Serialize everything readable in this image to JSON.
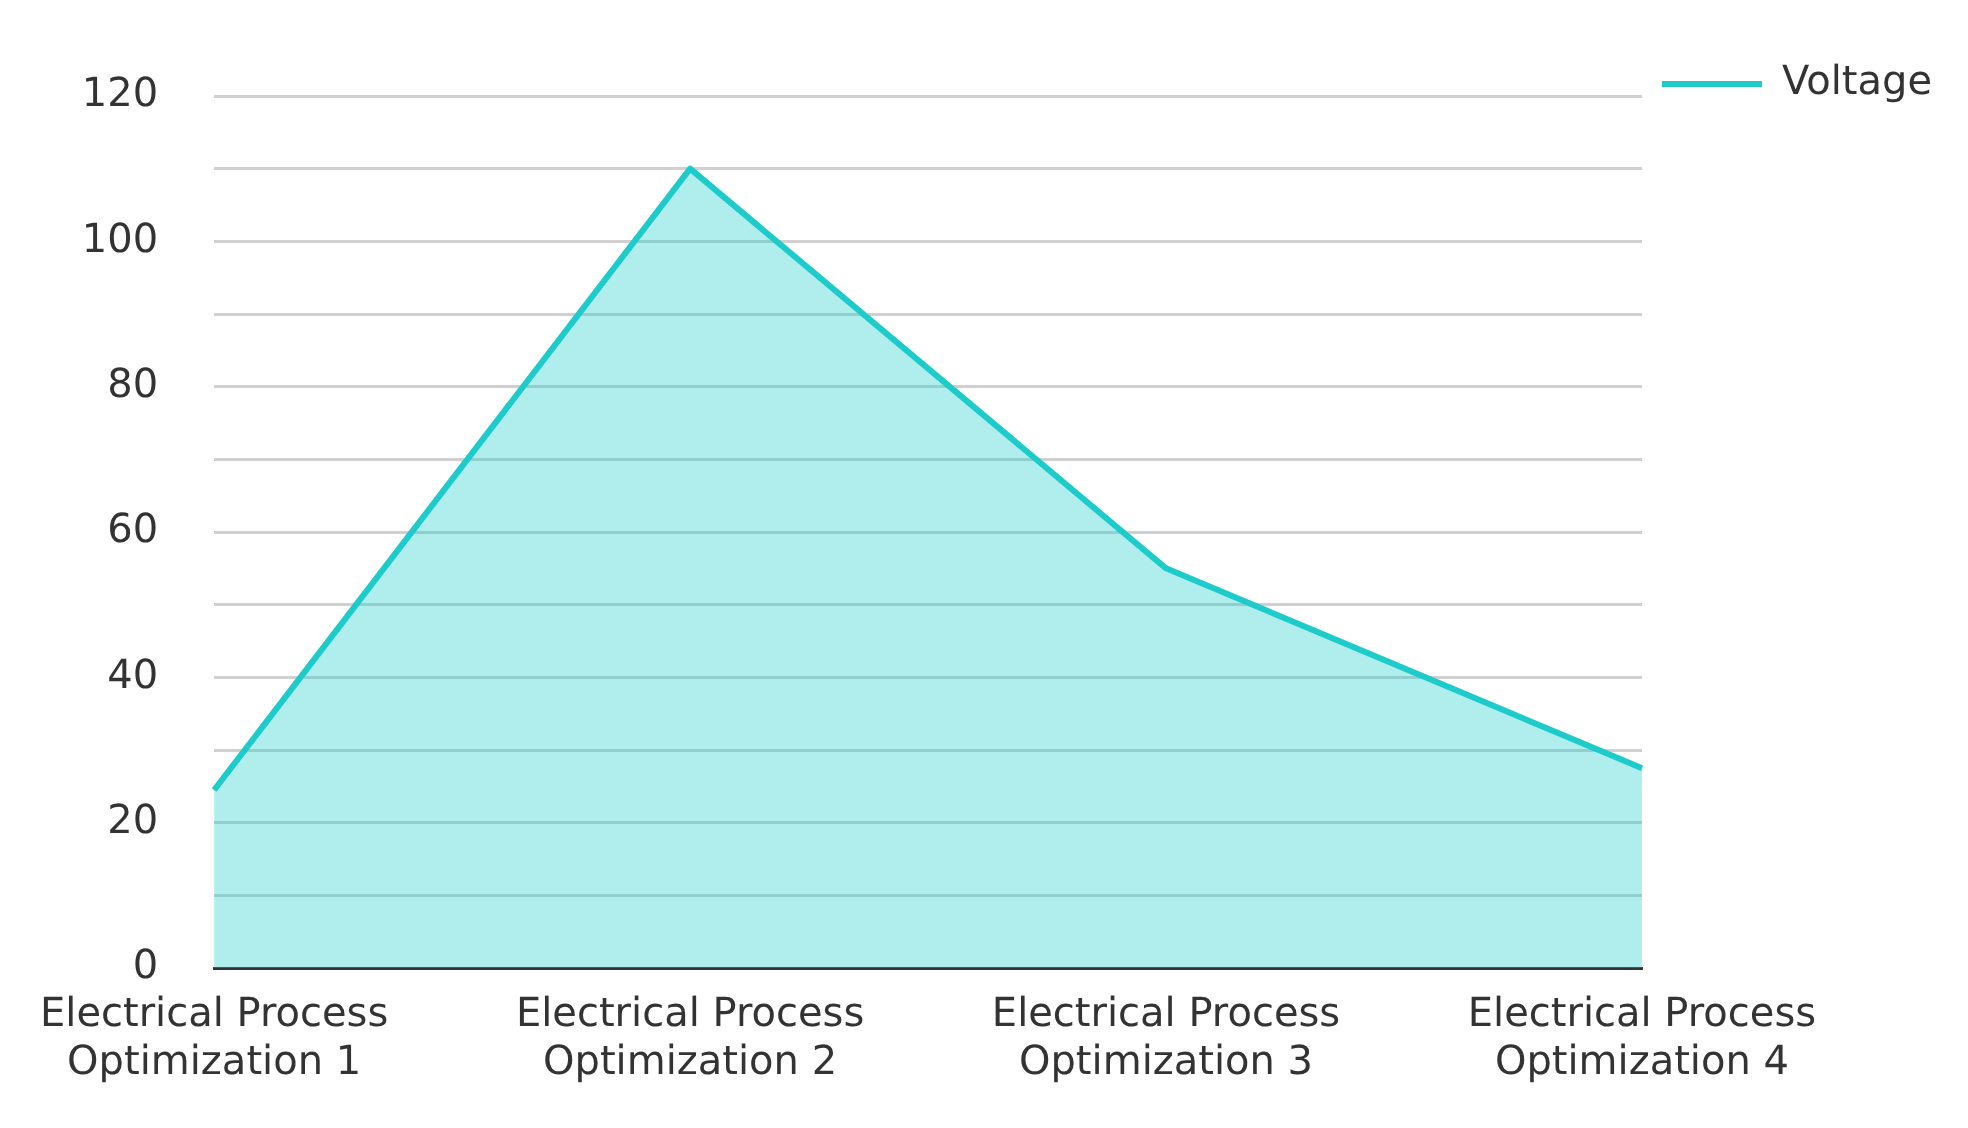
{
  "chart_data": {
    "type": "area",
    "categories": [
      "Electrical Process Optimization 1",
      "Electrical Process Optimization 2",
      "Electrical Process Optimization 3",
      "Electrical Process Optimization 4"
    ],
    "series": [
      {
        "name": "Voltage",
        "color": "#1ecbcb",
        "values": [
          24.5,
          110,
          55,
          27.5
        ]
      }
    ],
    "ylim": [
      0,
      120
    ],
    "yticks": [
      0,
      {
        "value": 10,
        "label": null
      },
      20,
      {
        "value": 30,
        "label": null
      },
      40,
      {
        "value": 50,
        "label": null
      },
      60,
      {
        "value": 70,
        "label": null
      },
      80,
      {
        "value": 90,
        "label": null
      },
      100,
      {
        "value": 110,
        "label": null
      },
      120
    ],
    "grid": "y",
    "legend": "top right"
  }
}
